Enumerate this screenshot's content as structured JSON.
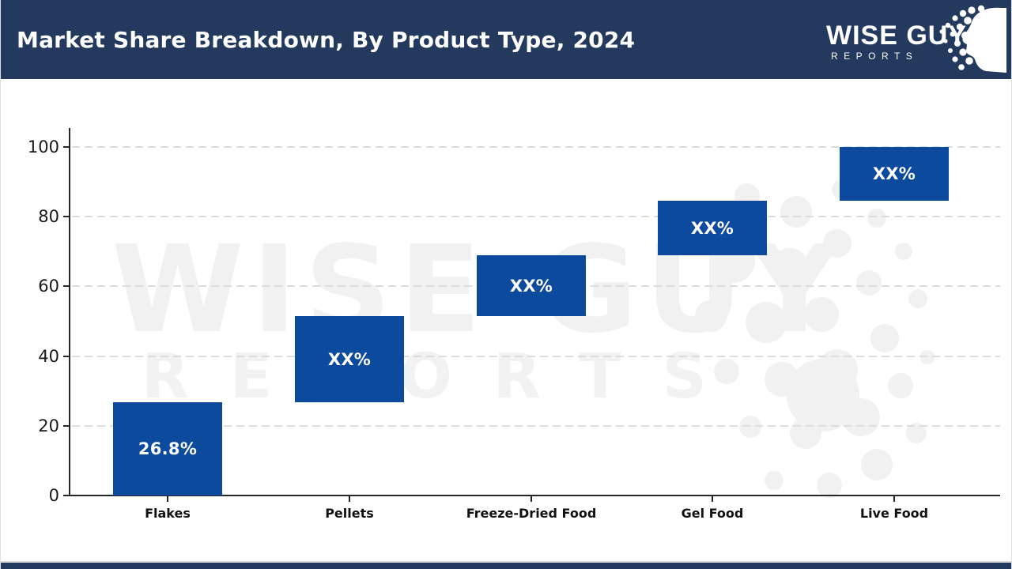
{
  "header": {
    "title": "Market Share Breakdown, By Product Type, 2024",
    "logo": {
      "wordmark": "WISE GUY",
      "subtext": "REPORTS"
    }
  },
  "watermark": {
    "line1": "WISE GUY",
    "line2": "REPORTS"
  },
  "chart_data": {
    "type": "bar",
    "subtype": "waterfall-stacked-steps",
    "title": "Market Share Breakdown, By Product Type, 2024",
    "categories": [
      "Flakes",
      "Pellets",
      "Freeze-Dried Food",
      "Gel Food",
      "Live Food"
    ],
    "segments": [
      {
        "category": "Flakes",
        "start": 0,
        "end": 26.8,
        "label": "26.8%"
      },
      {
        "category": "Pellets",
        "start": 26.8,
        "end": 51.5,
        "label": "XX%"
      },
      {
        "category": "Freeze-Dried Food",
        "start": 51.5,
        "end": 69.0,
        "label": "XX%"
      },
      {
        "category": "Gel Food",
        "start": 69.0,
        "end": 84.6,
        "label": "XX%"
      },
      {
        "category": "Live Food",
        "start": 84.6,
        "end": 100.0,
        "label": "XX%"
      }
    ],
    "xlabel": "",
    "ylabel": "",
    "ylim": [
      0,
      100
    ],
    "yticks": [
      0,
      20,
      40,
      60,
      80,
      100
    ],
    "grid": "horizontal-dashed",
    "legend": "none",
    "bar_color": "#0c4a9e",
    "bar_label_color": "#ffffff"
  },
  "colors": {
    "header_bg": "#23395e",
    "footer_bg": "#23395e",
    "bar_blue": "#0c4a9e",
    "grid_gray": "#dcdcdc",
    "axis_dark": "#262626",
    "watermark_gray": "#f1f1f1",
    "text_white": "#ffffff"
  }
}
